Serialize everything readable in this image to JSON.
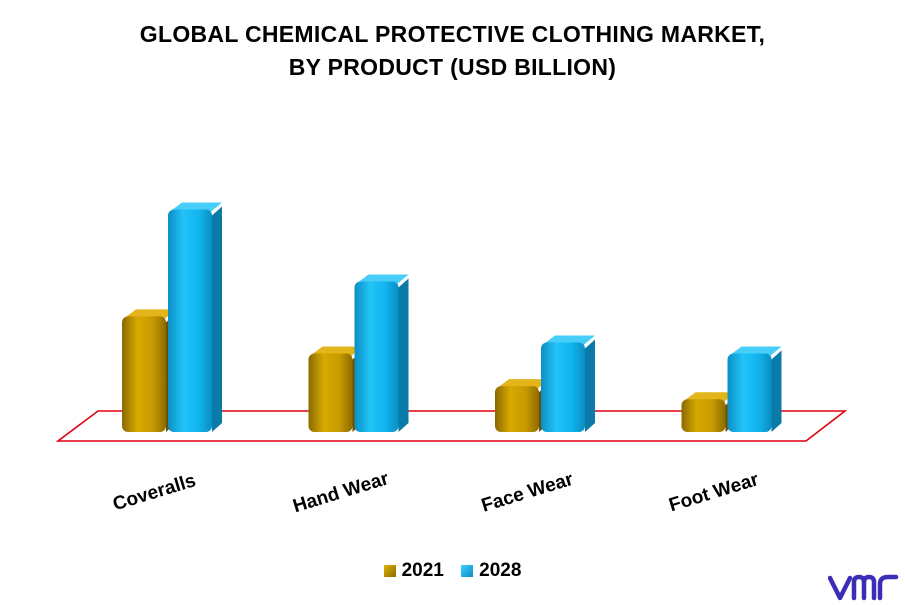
{
  "title_lines": [
    "GLOBAL CHEMICAL PROTECTIVE CLOTHING MARKET,",
    "BY PRODUCT (USD BILLION)"
  ],
  "chart_data": {
    "type": "bar",
    "title": "GLOBAL CHEMICAL PROTECTIVE CLOTHING MARKET, BY PRODUCT (USD BILLION)",
    "categories": [
      "Coveralls",
      "Hand Wear",
      "Face Wear",
      "Foot Wear"
    ],
    "series": [
      {
        "name": "2021",
        "values": [
          5.3,
          3.6,
          2.1,
          1.5
        ],
        "color": "#c79a00"
      },
      {
        "name": "2028",
        "values": [
          10.2,
          6.9,
          4.1,
          3.6
        ],
        "color": "#11b4ef"
      }
    ],
    "ylim": [
      0,
      11
    ],
    "grid": false,
    "legend_position": "bottom-center",
    "floor_color": "#e0000e"
  },
  "logo": {
    "text": "vmr",
    "color": "#3b2db6"
  }
}
